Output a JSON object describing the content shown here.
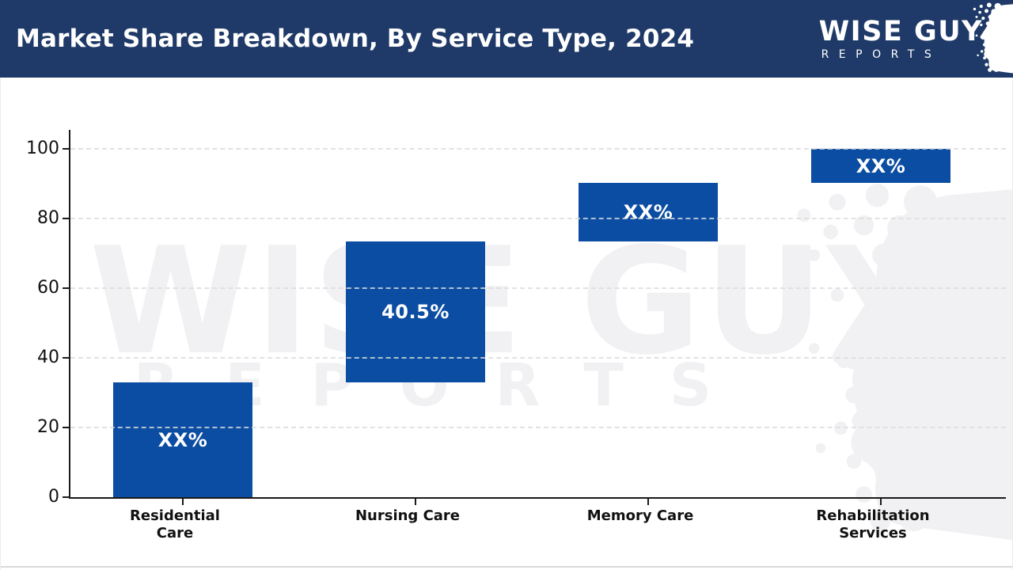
{
  "header": {
    "title": "Market Share Breakdown, By Service Type, 2024",
    "bg_color": "#1f3a68"
  },
  "logo": {
    "name_top": "WISE GUY",
    "name_bottom": "REPORTS"
  },
  "watermark": {
    "line1": "WISE GUY",
    "line2": "REPORTS"
  },
  "chart_data": {
    "type": "bar",
    "variant": "waterfall",
    "title": "Market Share Breakdown, By Service Type, 2024",
    "categories": [
      "Residential Care",
      "Nursing Care",
      "Memory Care",
      "Rehabilitation Services"
    ],
    "series": [
      {
        "name": "Market Share (%)",
        "segments": [
          {
            "category": "Residential Care",
            "start": 0,
            "end": 32.9,
            "label": "XX%"
          },
          {
            "category": "Nursing Care",
            "start": 32.9,
            "end": 73.4,
            "label": "40.5%"
          },
          {
            "category": "Memory Care",
            "start": 73.4,
            "end": 90.2,
            "label": "XX%"
          },
          {
            "category": "Rehabilitation Services",
            "start": 90.2,
            "end": 100,
            "label": "XX%"
          }
        ]
      }
    ],
    "ylim": [
      0,
      105.5
    ],
    "yticks": [
      0,
      20,
      40,
      60,
      80,
      100
    ],
    "xlabel": "",
    "ylabel": "",
    "grid": "horizontal-dashed",
    "legend": "none",
    "bar_color": "#0b4da2",
    "bar_label_color": "#ffffff",
    "axis_color": "#1a1a1a",
    "grid_color": "#dcdcdc"
  }
}
